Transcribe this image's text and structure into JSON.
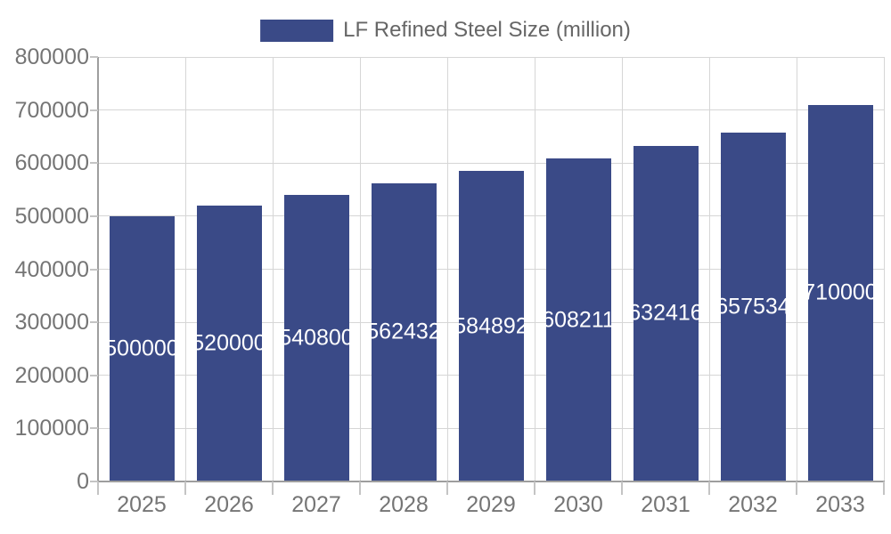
{
  "legend": {
    "label": "LF Refined Steel Size (million)"
  },
  "colors": {
    "bar": "#3A4A87",
    "bar_label": "#FFFFFF",
    "axis_text": "#757575",
    "legend_text": "#666666",
    "grid_line": "#D6D6D6",
    "axis_line": "#9E9E9E",
    "tick": "#C4C4C4",
    "background": "#FFFFFF"
  },
  "chart_data": {
    "type": "bar",
    "title": "",
    "xlabel": "",
    "ylabel": "",
    "categories": [
      "2025",
      "2026",
      "2027",
      "2028",
      "2029",
      "2030",
      "2031",
      "2032",
      "2033"
    ],
    "series": [
      {
        "name": "LF Refined Steel Size (million)",
        "color": "#3A4A87",
        "values": [
          500000,
          520000,
          540800,
          562432,
          584892,
          608211,
          632416,
          657534,
          710000
        ]
      }
    ],
    "ylim": [
      0,
      800000
    ],
    "yticks": [
      0,
      100000,
      200000,
      300000,
      400000,
      500000,
      600000,
      700000,
      800000
    ],
    "grid": true,
    "legend_position": "top",
    "bar_value_labels": true
  }
}
